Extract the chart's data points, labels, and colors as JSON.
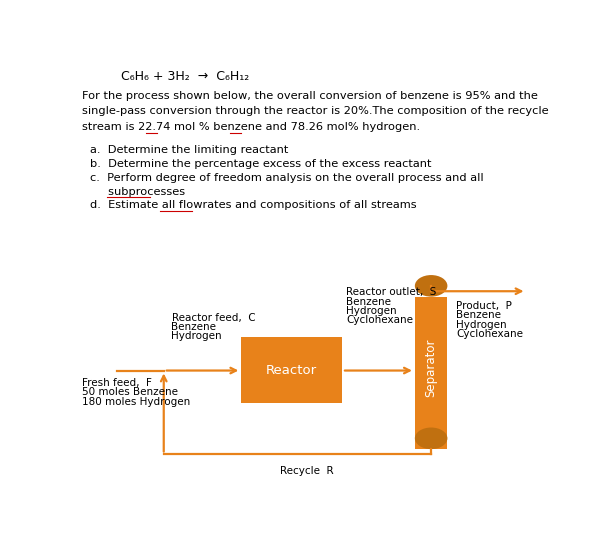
{
  "bg_color": "#ffffff",
  "orange": "#E8821A",
  "dark_orange": "#C07010",
  "text_color": "#000000",
  "equation_line": "C₆H₆ + 3H₂  →  C₆H₁₂",
  "para_lines": [
    "For the process shown below, the overall conversion of benzene is 95% and the",
    "single-pass conversion through the reactor is 20%.The composition of the recycle",
    "stream is 22.74 mol % benzene and 78.26 mol% hydrogen."
  ],
  "items": [
    [
      "a.  Determine the limiting reactant",
      false,
      ""
    ],
    [
      "b.  Determine the percentage excess of the excess reactant",
      false,
      ""
    ],
    [
      "c.  Perform degree of freedom analysis on the overall process and all",
      false,
      ""
    ],
    [
      "     subprocesses",
      true,
      "subprocesses"
    ],
    [
      "d.  Estimate all flowrates and compositions of all streams",
      true,
      "flowrates"
    ]
  ],
  "reactor_label": "Reactor",
  "separator_label": "Separator",
  "fresh_feed_label": "Fresh feed,  F",
  "fresh_feed_line1": "50 moles Benzene",
  "fresh_feed_line2": "180 moles Hydrogen",
  "reactor_feed_label": "Reactor feed,  C",
  "reactor_feed_line1": "Benzene",
  "reactor_feed_line2": "Hydrogen",
  "reactor_outlet_label": "Reactor outlet,  S",
  "reactor_outlet_line1": "Benzene",
  "reactor_outlet_line2": "Hydrogen",
  "reactor_outlet_line3": "Cyclohexane",
  "product_label": "Product,  P",
  "product_line1": "Benzene",
  "product_line2": "Hydrogen",
  "product_line3": "Cyclohexane",
  "recycle_label": "Recycle  R",
  "underline_color": "#cc0000",
  "fs_eq": 9.0,
  "fs_para": 8.2,
  "fs_item": 8.2,
  "fs_diag": 7.5,
  "fs_reactor": 9.5
}
